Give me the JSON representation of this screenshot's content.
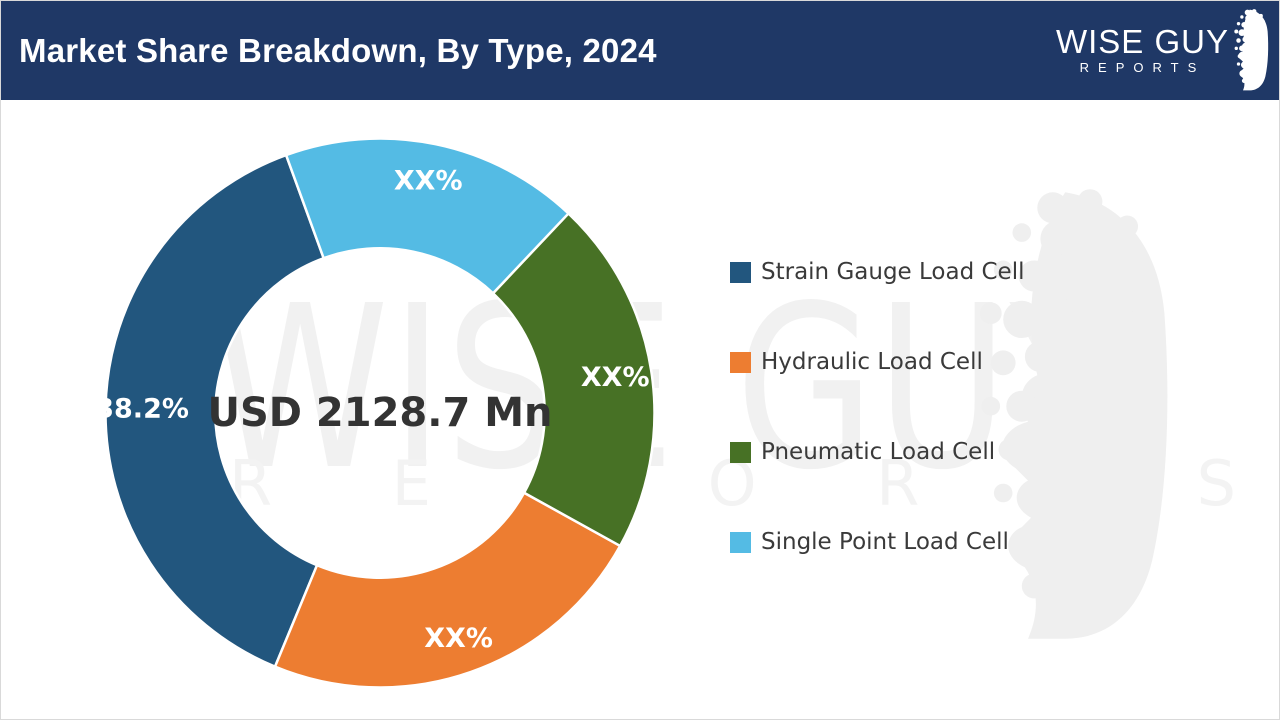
{
  "header": {
    "title": "Market Share Breakdown, By Type, 2024",
    "bg_color": "#1F3866",
    "logo": {
      "name": "WISE GUY",
      "sub": "REPORTS",
      "icon": "dotted-face-profile"
    }
  },
  "watermark": {
    "line1": "WISE GUY",
    "line2": "R E P O R T S"
  },
  "chart_data": {
    "type": "pie",
    "subtype": "donut",
    "title": "Market Share Breakdown, By Type, 2024",
    "center_label": "USD 2128.7 Mn",
    "start_angle_deg": 110,
    "direction": "counterclockwise",
    "inner_radius_ratio": 0.6,
    "slice_label_color": "#ffffff",
    "slice_border_color": "#ffffff",
    "legend_position": "right",
    "segments": [
      {
        "label": "Strain Gauge Load Cell",
        "display_pct": "38.2%",
        "value_pct": 38.2,
        "color": "#22567E"
      },
      {
        "label": "Hydraulic Load Cell",
        "display_pct": "XX%",
        "value_pct": 23.2,
        "color": "#ED7D31"
      },
      {
        "label": "Pneumatic Load Cell",
        "display_pct": "XX%",
        "value_pct": 21.0,
        "color": "#477125"
      },
      {
        "label": "Single Point Load Cell",
        "display_pct": "XX%",
        "value_pct": 17.6,
        "color": "#54BBE4"
      }
    ]
  }
}
